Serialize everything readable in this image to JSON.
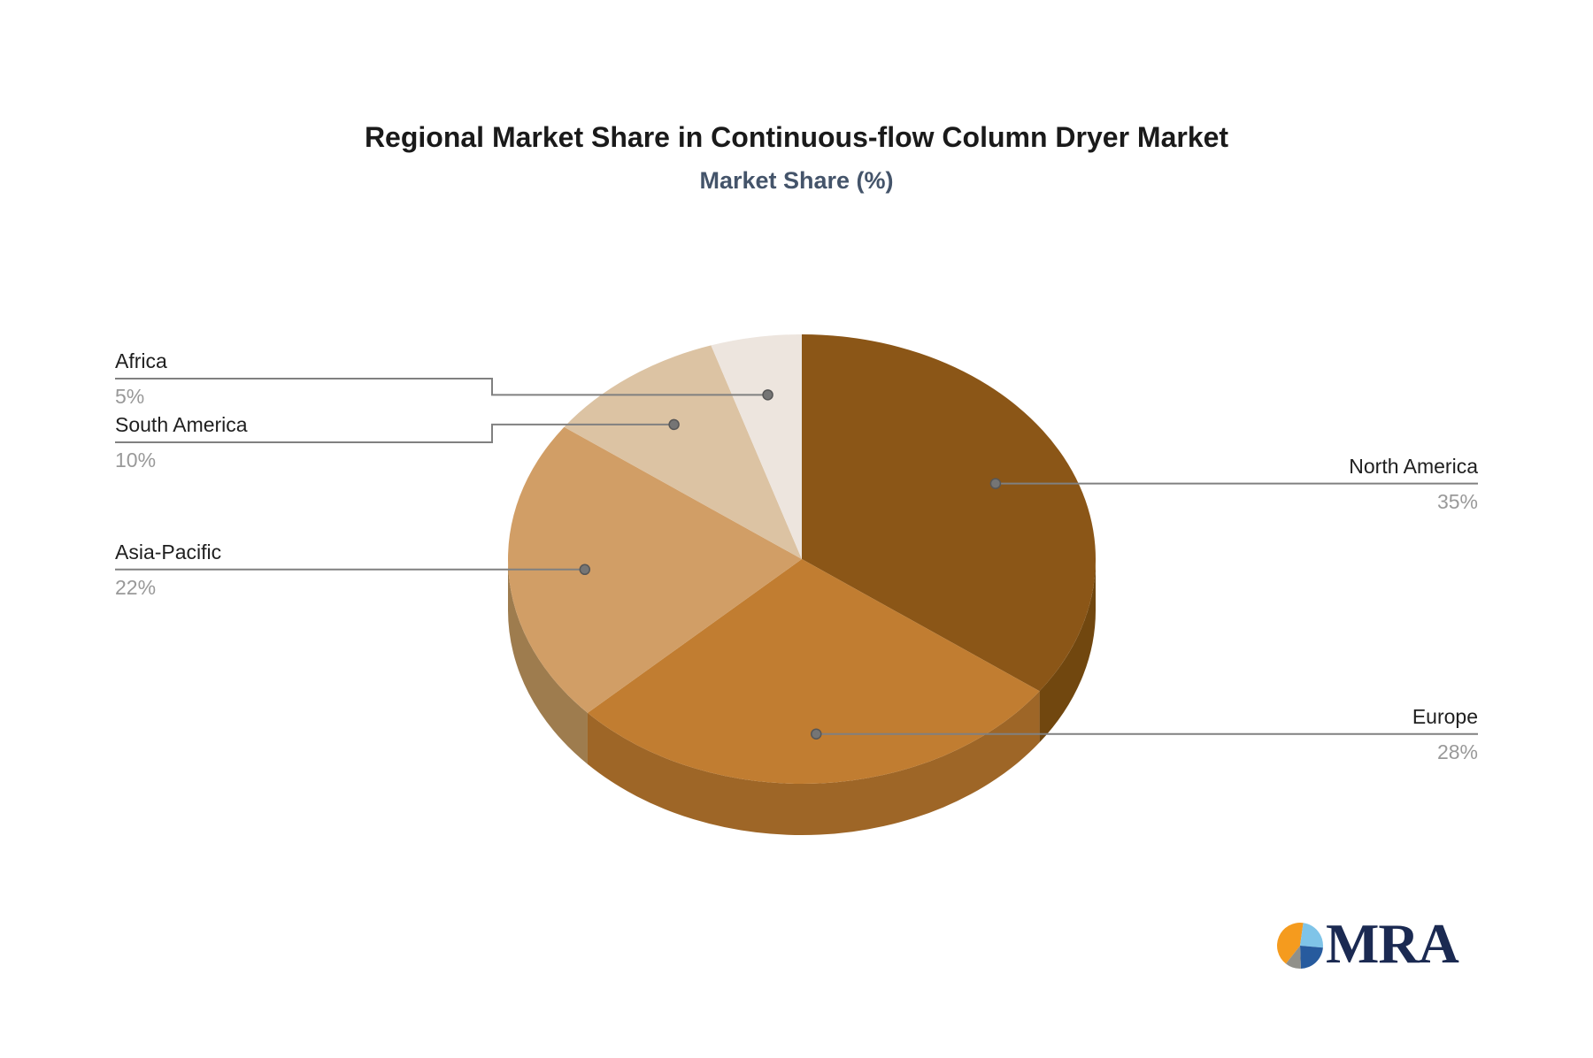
{
  "page": {
    "background": "#FFFFFF"
  },
  "header": {
    "title": "Regional Market Share in Continuous-flow Column Dryer Market",
    "subtitle": "Market Share (%)",
    "title_color": "#1A1A1A",
    "subtitle_color": "#44546A"
  },
  "chart_data": {
    "type": "pie",
    "title": "Regional Market Share in Continuous-flow Column Dryer Market",
    "subtitle": "Market Share (%)",
    "unit": "%",
    "effect_3d": true,
    "start_angle_deg": 0,
    "direction": "clockwise",
    "legend_position": "callout-labels",
    "slices": [
      {
        "label": "North America",
        "value": 35,
        "pct": "35%",
        "color": "#8B5617",
        "side_color": "#71470F",
        "label_side": "right"
      },
      {
        "label": "Europe",
        "value": 28,
        "pct": "28%",
        "color": "#C17D31",
        "side_color": "#9E6627",
        "label_side": "right"
      },
      {
        "label": "Asia-Pacific",
        "value": 22,
        "pct": "22%",
        "color": "#D19E66",
        "side_color": "#9E7C4E",
        "label_side": "left"
      },
      {
        "label": "South America",
        "value": 10,
        "pct": "10%",
        "color": "#DCC3A3",
        "side_color": "#B19B7F",
        "label_side": "left"
      },
      {
        "label": "Africa",
        "value": 5,
        "pct": "5%",
        "color": "#EDE5DE",
        "side_color": "#C0B8B1",
        "label_side": "left"
      }
    ],
    "label_name_color": "#1F1F1F",
    "label_value_color": "#999999",
    "leader_line_color": "#808080",
    "leader_dot_color": "#757575"
  },
  "logo": {
    "text": "MRA",
    "text_color": "#1B2A52",
    "icon_slices": [
      {
        "name": "orange",
        "from_deg": 218,
        "to_deg": 368,
        "color": "#F59B1E"
      },
      {
        "name": "light-blue",
        "from_deg": 8,
        "to_deg": 95,
        "color": "#7FC4E8"
      },
      {
        "name": "navy",
        "from_deg": 95,
        "to_deg": 178,
        "color": "#275B9E"
      },
      {
        "name": "gray",
        "from_deg": 178,
        "to_deg": 218,
        "color": "#90908A"
      }
    ]
  }
}
